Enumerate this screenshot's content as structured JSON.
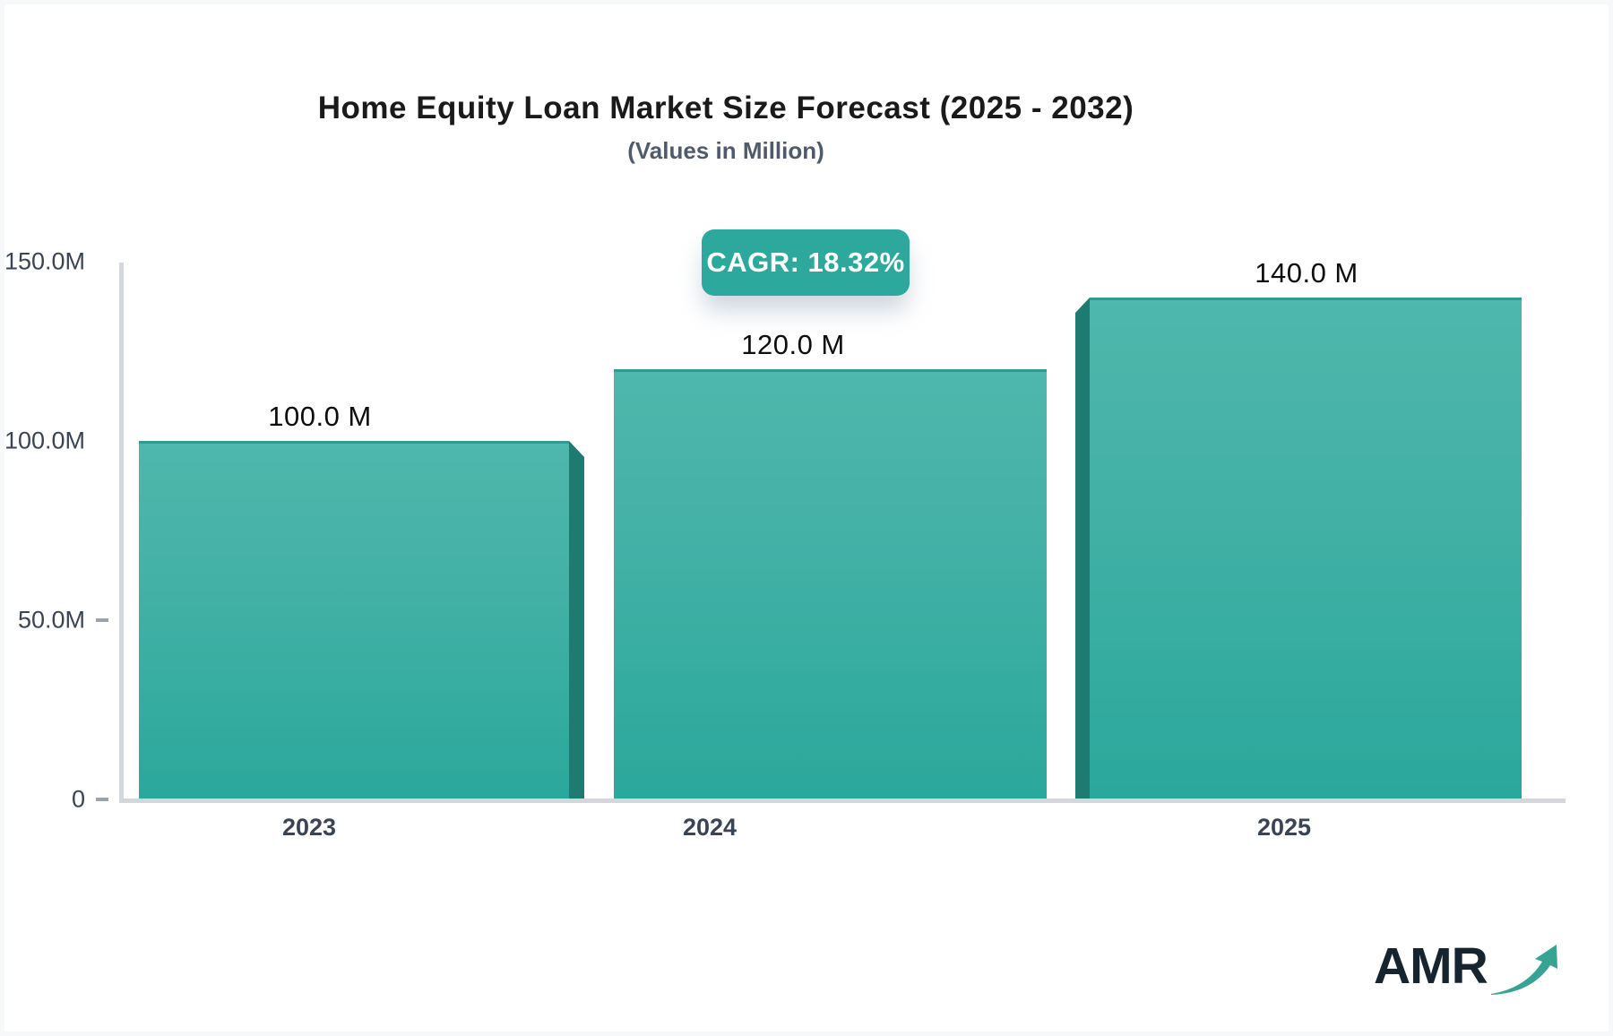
{
  "page": {
    "title": "Home Equity Loan Market Size Forecast (2025 - 2032)",
    "subtitle": "(Values in Million)",
    "cagr_label": "CAGR: 18.32%"
  },
  "colors": {
    "bar_top": "#4fb7ad",
    "bar_bottom": "#2aa89b",
    "bar_side_3d": "#1e7b71",
    "badge": "#2ca89c",
    "axis_line": "#d3d6db",
    "tick_text": "#3b4454",
    "title_text": "#1a1a1a",
    "logo_navy": "#16242f",
    "logo_arrow_teal": "#37a393"
  },
  "chart_data": {
    "type": "bar",
    "title": "Home Equity Loan Market Size Forecast (2025 - 2032)",
    "subtitle": "(Values in Million)",
    "annotation": "CAGR: 18.32%",
    "categories": [
      "2023",
      "2024",
      "2025"
    ],
    "values": [
      100,
      120,
      140
    ],
    "value_labels": [
      "100.0 M",
      "120.0 M",
      "140.0 M"
    ],
    "xlabel": "",
    "ylabel": "",
    "ylim": [
      0,
      150
    ],
    "y_ticks": [
      {
        "label": "150.0M",
        "value": 150,
        "dash": false
      },
      {
        "label": "100.0M",
        "value": 100,
        "dash": false
      },
      {
        "label": "50.0M",
        "value": 50,
        "dash": true
      },
      {
        "label": "0",
        "value": 0,
        "dash": true
      }
    ],
    "grid": false,
    "legend": false,
    "style": "pseudo-3d teal bars"
  },
  "logo": {
    "text": "AMR"
  }
}
